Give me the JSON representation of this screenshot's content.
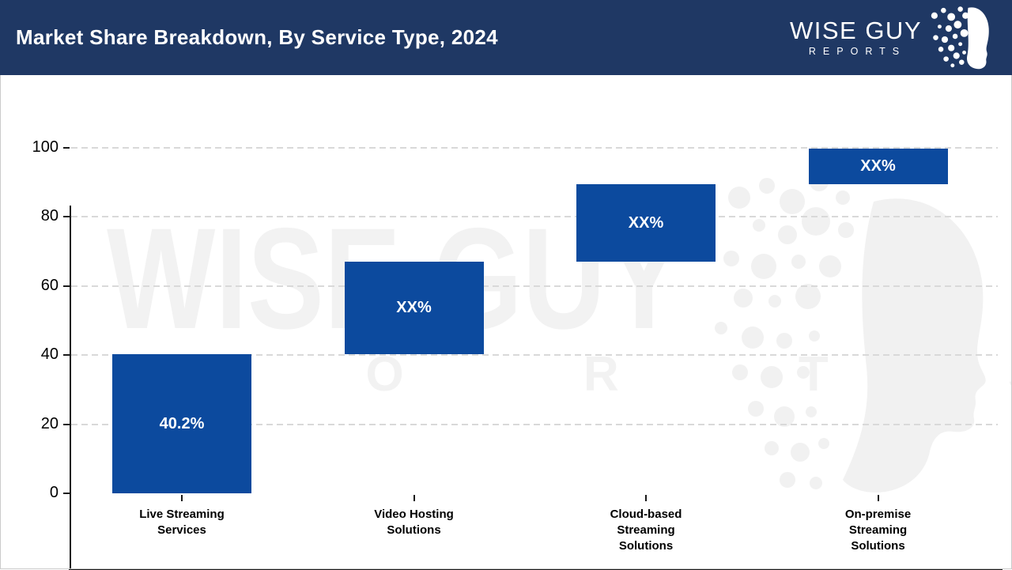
{
  "header": {
    "title": "Market Share Breakdown, By Service Type, 2024",
    "logo": {
      "line1": "WISE GUY",
      "line2": "REPORTS"
    }
  },
  "watermark": {
    "line1": "WISE GUY",
    "line2": "P O R T S"
  },
  "colors": {
    "header_bg": "#1f3864",
    "page_bg": "#ffffff",
    "watermark": "#f2f2f2",
    "border": "#cbcbcb"
  },
  "chart_data": {
    "type": "bar",
    "subtype": "waterfall (stacked market-share breakdown)",
    "title": "Market Share Breakdown, By Service Type, 2024",
    "categories": [
      "Live Streaming Services",
      "Video Hosting Solutions",
      "Cloud-based Streaming Solutions",
      "On-premise Streaming Solutions"
    ],
    "bars": [
      {
        "category_lines": [
          "Live Streaming",
          "Services"
        ],
        "base": 0,
        "top": 40.2,
        "label": "40.2%"
      },
      {
        "category_lines": [
          "Video Hosting",
          "Solutions"
        ],
        "base": 40.2,
        "top": 67,
        "label": "XX%"
      },
      {
        "category_lines": [
          "Cloud-based",
          "Streaming",
          "Solutions"
        ],
        "base": 67,
        "top": 89.5,
        "label": "XX%"
      },
      {
        "category_lines": [
          "On-premise",
          "Streaming",
          "Solutions"
        ],
        "base": 89.5,
        "top": 99.7,
        "label": "XX%"
      }
    ],
    "y_ticks": [
      0,
      20,
      40,
      60,
      80,
      100
    ],
    "ylim": [
      0,
      105
    ],
    "xlabel": "",
    "ylabel": "",
    "grid": "horizontal dashed",
    "legend": "none",
    "bar_color": "#0c4a9e",
    "value_label_color": "#ffffff",
    "axis_color": "#1a1a1a",
    "gridline_color": "#d9d9d9"
  }
}
